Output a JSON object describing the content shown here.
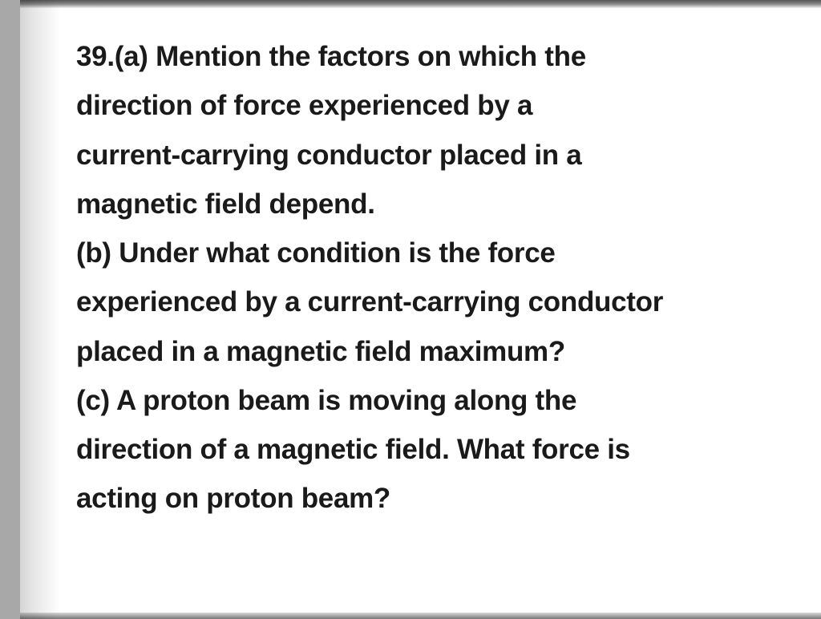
{
  "question": {
    "number": "39.",
    "parts": {
      "a": {
        "label": "(a)",
        "text_line1": "Mention the factors on which the",
        "text_line2": "direction of force experienced by a",
        "text_line3": "current-carrying conductor placed in a",
        "text_line4": "magnetic field depend."
      },
      "b": {
        "label": "(b)",
        "text_line1": "Under what condition is the force",
        "text_line2": "experienced by a current-carrying conductor",
        "text_line3": "placed in a magnetic field maximum?"
      },
      "c": {
        "label": "(c)",
        "text_line1": "A proton beam is moving along the",
        "text_line2": "direction of a magnetic field. What force is",
        "text_line3": "acting on proton beam?"
      }
    }
  },
  "styling": {
    "background_color": "#ffffff",
    "text_color": "#1a1a1a",
    "font_size_pt": 26,
    "font_weight": "bold",
    "font_family": "Arial",
    "line_height": 1.75,
    "edge_shadow_color": "#888888"
  }
}
